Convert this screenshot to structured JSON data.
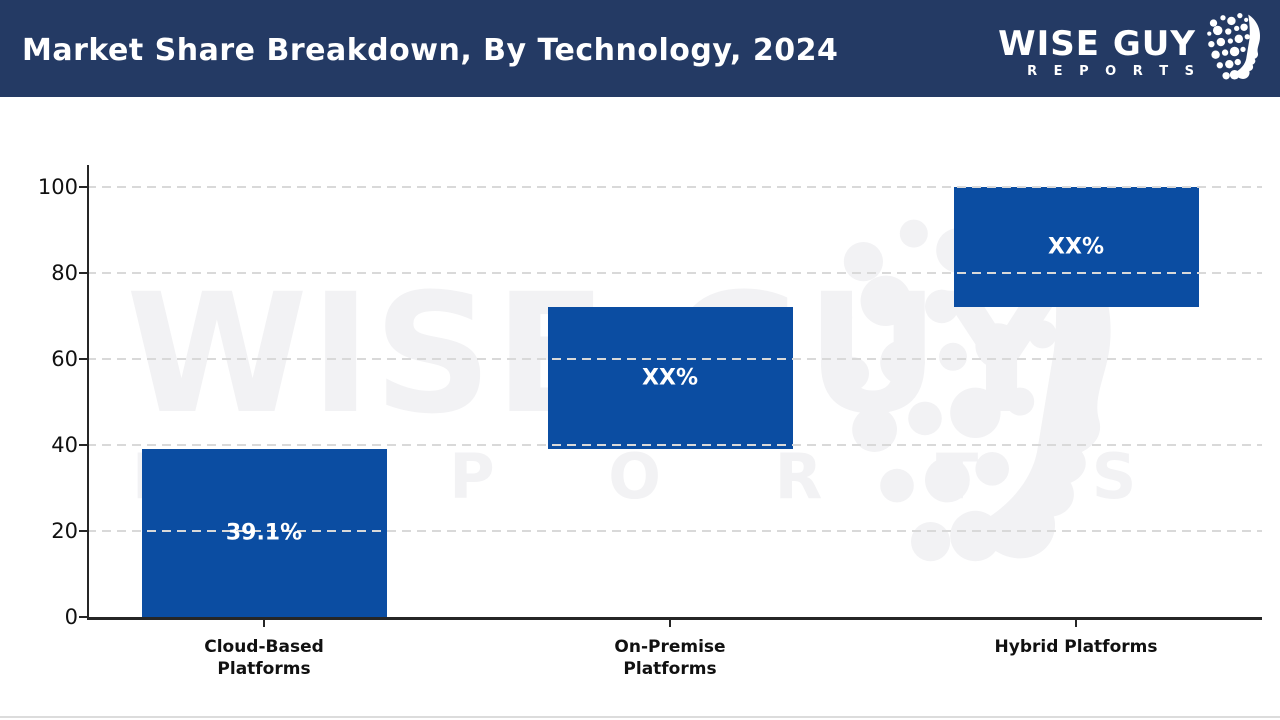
{
  "header": {
    "title": "Market Share Breakdown, By Technology, 2024",
    "logo_line1": "WISE GUY",
    "logo_line2": "R E P O R T S",
    "bg_color": "#243a64"
  },
  "watermark": {
    "line1": "WISE GUY",
    "line2": "R E P O R T S"
  },
  "chart_data": {
    "type": "bar",
    "subtype": "stacked-waterfall-floating-bars",
    "title": "Market Share Breakdown, By Technology, 2024",
    "categories": [
      "Cloud-Based Platforms",
      "On-Premise Platforms",
      "Hybrid Platforms"
    ],
    "category_label_lines": [
      [
        "Cloud-Based",
        "Platforms"
      ],
      [
        "On-Premise",
        "Platforms"
      ],
      [
        "Hybrid Platforms"
      ]
    ],
    "segments": [
      {
        "category": "Cloud-Based Platforms",
        "start": 0,
        "end": 39.1,
        "value_label": "39.1%"
      },
      {
        "category": "On-Premise Platforms",
        "start": 39.1,
        "end": 72,
        "value_label": "XX%"
      },
      {
        "category": "Hybrid Platforms",
        "start": 72,
        "end": 100,
        "value_label": "XX%"
      }
    ],
    "y_ticks": [
      0,
      20,
      40,
      60,
      80,
      100
    ],
    "ylim": [
      0,
      105
    ],
    "xlabel": "",
    "ylabel": "",
    "grid": true,
    "grid_style": "dashed",
    "legend": false,
    "colors": {
      "bar": "#0b4da2",
      "value_label": "#ffffff",
      "grid": "#d9d9d9",
      "axis": "#262626",
      "tick_label": "#111111"
    }
  }
}
